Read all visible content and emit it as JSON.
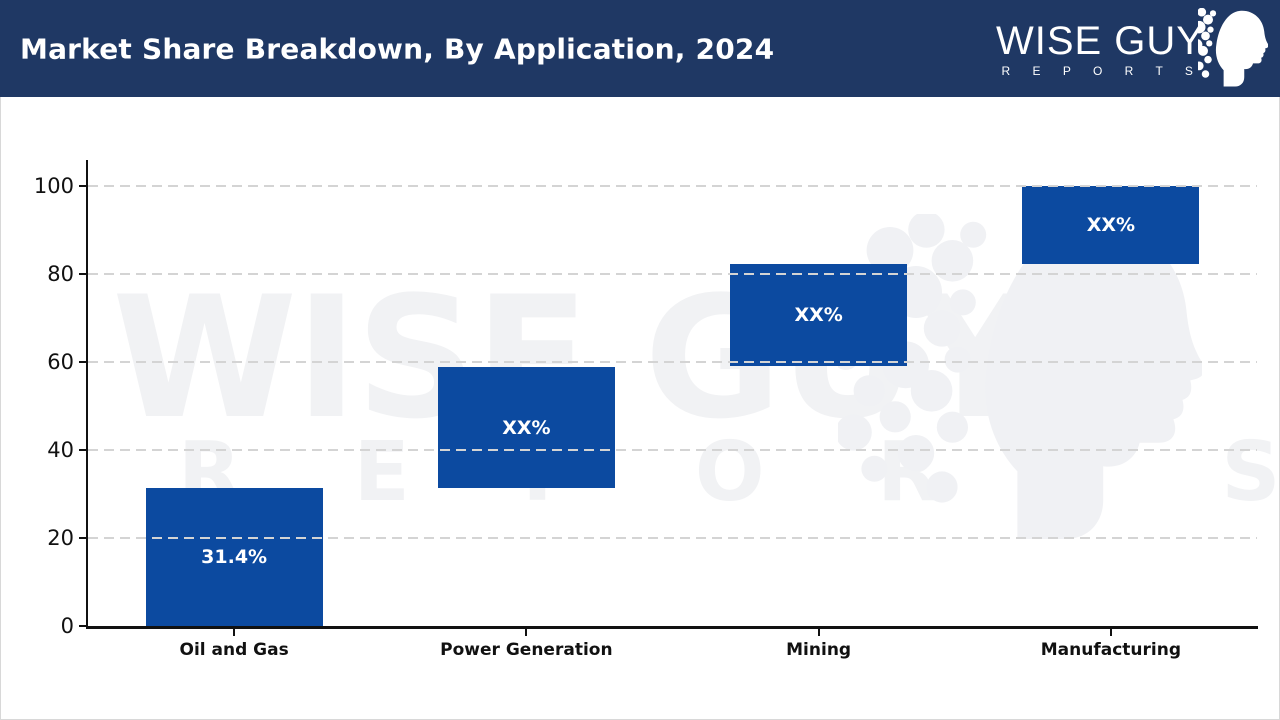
{
  "header": {
    "title": "Market Share Breakdown, By Application, 2024",
    "background_color": "#1f3864",
    "logo": {
      "line1": "WISE GUY",
      "line2": "R E P O R T S"
    }
  },
  "watermark": {
    "line1": "WISE GUY",
    "line2": "R E P O R T S"
  },
  "chart_data": {
    "type": "bar",
    "subtype": "waterfall",
    "title": "Market Share Breakdown, By Application, 2024",
    "categories": [
      "Oil and Gas",
      "Power Generation",
      "Mining",
      "Manufacturing"
    ],
    "segments": [
      {
        "category": "Oil and Gas",
        "start": 0,
        "end": 31.4,
        "label": "31.4%"
      },
      {
        "category": "Power Generation",
        "start": 31.4,
        "end": 58.8,
        "label": "XX%"
      },
      {
        "category": "Mining",
        "start": 59.0,
        "end": 82.3,
        "label": "XX%"
      },
      {
        "category": "Manufacturing",
        "start": 82.3,
        "end": 100,
        "label": "XX%"
      }
    ],
    "xlabel": "",
    "ylabel": "",
    "ylim": [
      0,
      106
    ],
    "yticks": [
      0,
      20,
      40,
      60,
      80,
      100
    ],
    "grid": {
      "axis": "y",
      "style": "dashed",
      "color": "#d4d4d4",
      "above_bars": true
    },
    "bar_color": "#0c4aa0",
    "bar_label_color": "#ffffff",
    "legend": null
  }
}
